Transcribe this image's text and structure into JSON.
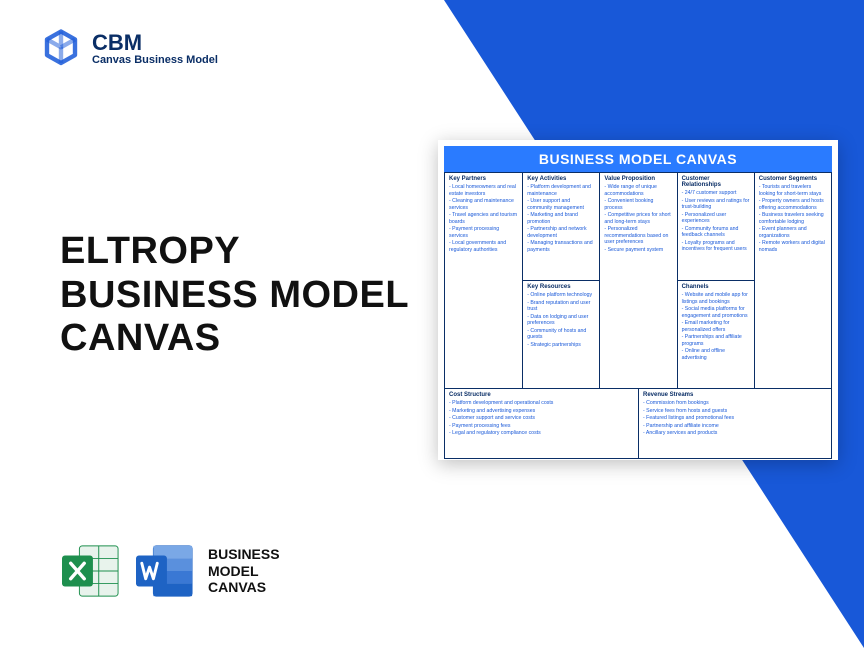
{
  "logo": {
    "name": "CBM",
    "subtitle": "Canvas Business Model"
  },
  "title": {
    "line1": "ELTROPY",
    "line2": "BUSINESS MODEL",
    "line3": "CANVAS"
  },
  "appsLabel": {
    "line1": "BUSINESS",
    "line2": "MODEL",
    "line3": "CANVAS"
  },
  "canvas": {
    "header": "BUSINESS MODEL CANVAS",
    "keyPartners": {
      "title": "Key Partners",
      "items": [
        "Local homeowners and real estate investors",
        "Cleaning and maintenance services",
        "Travel agencies and tourism boards",
        "Payment processing services",
        "Local governments and regulatory authorities"
      ]
    },
    "keyActivities": {
      "title": "Key Activities",
      "items": [
        "Platform development and maintenance",
        "User support and community management",
        "Marketing and brand promotion",
        "Partnership and network development",
        "Managing transactions and payments"
      ]
    },
    "keyResources": {
      "title": "Key Resources",
      "items": [
        "Online platform technology",
        "Brand reputation and user trust",
        "Data on lodging and user preferences",
        "Community of hosts and guests",
        "Strategic partnerships"
      ]
    },
    "valueProp": {
      "title": "Value Proposition",
      "items": [
        "Wide range of unique accommodations",
        "Convenient booking process",
        "Competitive prices for short and long-term stays",
        "Personalized recommendations based on user preferences",
        "Secure payment system"
      ]
    },
    "custRel": {
      "title": "Customer Relationships",
      "items": [
        "24/7 customer support",
        "User reviews and ratings for trust-building",
        "Personalized user experiences",
        "Community forums and feedback channels",
        "Loyalty programs and incentives for frequent users"
      ]
    },
    "channels": {
      "title": "Channels",
      "items": [
        "Website and mobile app for listings and bookings",
        "Social media platforms for engagement and promotions",
        "Email marketing for personalized offers",
        "Partnerships and affiliate programs",
        "Online and offline advertising"
      ]
    },
    "custSeg": {
      "title": "Customer Segments",
      "items": [
        "Tourists and travelers looking for short-term stays",
        "Property owners and hosts offering accommodations",
        "Business travelers seeking comfortable lodging",
        "Event planners and organizations",
        "Remote workers and digital nomads"
      ]
    },
    "costStructure": {
      "title": "Cost Structure",
      "items": [
        "Platform development and operational costs",
        "Marketing and advertising expenses",
        "Customer support and service costs",
        "Payment processing fees",
        "Legal and regulatory compliance costs"
      ]
    },
    "revenue": {
      "title": "Revenue Streams",
      "items": [
        "Commission from bookings",
        "Service fees from hosts and guests",
        "Featured listings and promotional fees",
        "Partnership and affiliate income",
        "Ancillary services and products"
      ]
    }
  },
  "colors": {
    "brand": "#1858d8",
    "excel": "#1e8f4e",
    "word": "#1e63c4"
  }
}
